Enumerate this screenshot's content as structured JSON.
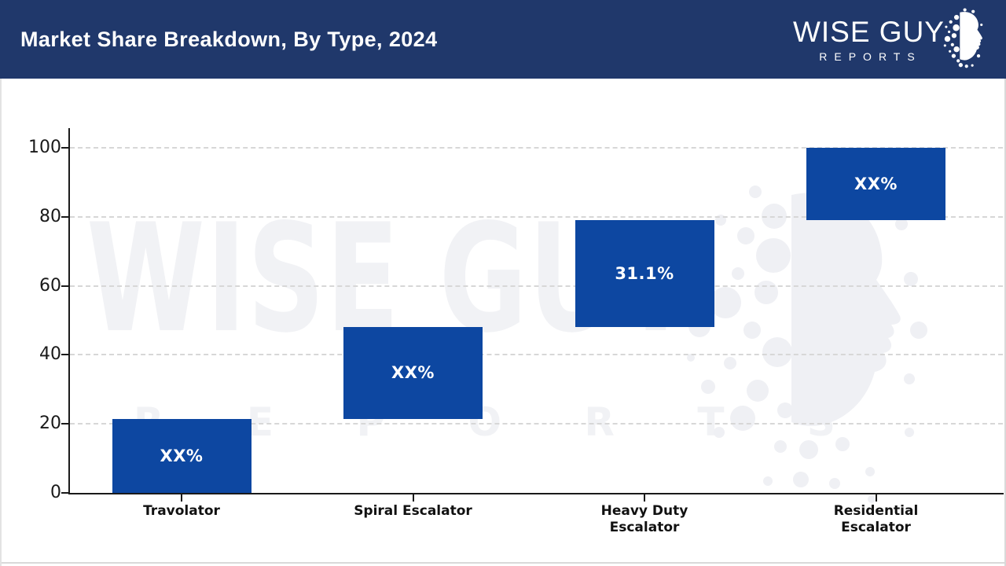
{
  "header": {
    "title": "Market Share Breakdown, By Type, 2024",
    "logo_line1": "WISE GUY",
    "logo_line2": "REPORTS"
  },
  "watermark": {
    "line1": "WISE GUY",
    "line2": "R E P O R T S"
  },
  "colors": {
    "header_bg": "#20386B",
    "bar": "#0D47A1",
    "grid": "#D7D7D7",
    "axis": "#1A1A1A",
    "value_label": "#FFFFFF",
    "watermark": "#F1F2F5"
  },
  "chart_data": {
    "type": "bar",
    "subtype": "waterfall (floating cumulative bars)",
    "title": "Market Share Breakdown, By Type, 2024",
    "categories": [
      "Travolator",
      "Spiral Escalator",
      "Heavy Duty Escalator",
      "Residential Escalator"
    ],
    "category_lines": [
      [
        "Travolator"
      ],
      [
        "Spiral Escalator"
      ],
      [
        "Heavy Duty",
        "Escalator"
      ],
      [
        "Residential",
        "Escalator"
      ]
    ],
    "series": [
      {
        "name": "Market share (%)",
        "segments": [
          {
            "category": "Travolator",
            "start": 0,
            "end": 21.5,
            "label": "XX%"
          },
          {
            "category": "Spiral Escalator",
            "start": 21.5,
            "end": 48,
            "label": "XX%"
          },
          {
            "category": "Heavy Duty Escalator",
            "start": 48,
            "end": 79.1,
            "label": "31.1%"
          },
          {
            "category": "Residential Escalator",
            "start": 79.1,
            "end": 100,
            "label": "XX%"
          }
        ]
      }
    ],
    "xlabel": "",
    "ylabel": "",
    "ylim": [
      0,
      100
    ],
    "yticks": [
      0,
      20,
      40,
      60,
      80,
      100
    ],
    "grid": "horizontal dashed",
    "legend": false
  }
}
